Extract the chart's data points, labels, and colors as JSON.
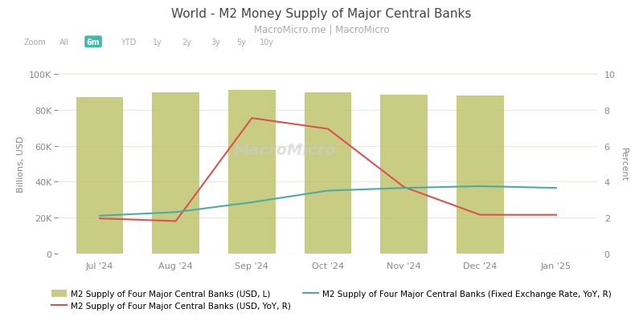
{
  "title": "World - M2 Money Supply of Major Central Banks",
  "subtitle": "MacroMicro.me | MacroMicro",
  "x_labels": [
    "Jul '24",
    "Aug '24",
    "Sep '24",
    "Oct '24",
    "Nov '24",
    "Dec '24",
    "Jan '25"
  ],
  "bar_x": [
    0,
    1,
    2,
    3,
    4,
    5
  ],
  "bar_heights": [
    87000,
    90000,
    91000,
    90000,
    88500,
    88000
  ],
  "bar_color": "#b8bc5a",
  "bar_alpha": 0.75,
  "line_red_y_right": [
    1.95,
    1.8,
    7.55,
    6.95,
    3.7,
    2.15,
    2.15
  ],
  "line_green_y_right": [
    2.1,
    2.3,
    2.85,
    3.5,
    3.65,
    3.75,
    3.65
  ],
  "line_red_color": "#d9534f",
  "line_green_color": "#4aada0",
  "ylabel_left": "Billions, USD",
  "ylabel_right": "Percent",
  "ylim_left": [
    0,
    100000
  ],
  "ylim_right": [
    0,
    10
  ],
  "yticks_left": [
    0,
    20000,
    40000,
    60000,
    80000,
    100000
  ],
  "yticks_right": [
    0,
    2,
    4,
    6,
    8,
    10
  ],
  "ytick_labels_left": [
    "0",
    "20K",
    "40K",
    "60K",
    "80K",
    "100K"
  ],
  "ytick_labels_right": [
    "0",
    "2",
    "4",
    "6",
    "8",
    "10"
  ],
  "background_color": "#ffffff",
  "plot_bg_color": "#ffffff",
  "grid_color": "#e8e8e2",
  "watermark": "MacroMicro",
  "legend_items": [
    {
      "label": "M2 Supply of Four Major Central Banks (USD, L)",
      "type": "bar",
      "color": "#b8bc5a"
    },
    {
      "label": "M2 Supply of Four Major Central Banks (USD, YoY, R)",
      "type": "line",
      "color": "#d9534f"
    },
    {
      "label": "M2 Supply of Four Major Central Banks (Fixed Exchange Rate, YoY, R)",
      "type": "line",
      "color": "#4aada0"
    }
  ],
  "top_buttons": [
    "Zoom",
    "All",
    "6m",
    "YTD",
    "1y",
    "2y",
    "3y",
    "5y",
    "10y"
  ],
  "active_button": "6m",
  "active_button_color": "#40b8aa",
  "button_text_color": "#aaaaaa",
  "title_fontsize": 11,
  "subtitle_fontsize": 8.5,
  "tick_fontsize": 8,
  "legend_fontsize": 7.5
}
